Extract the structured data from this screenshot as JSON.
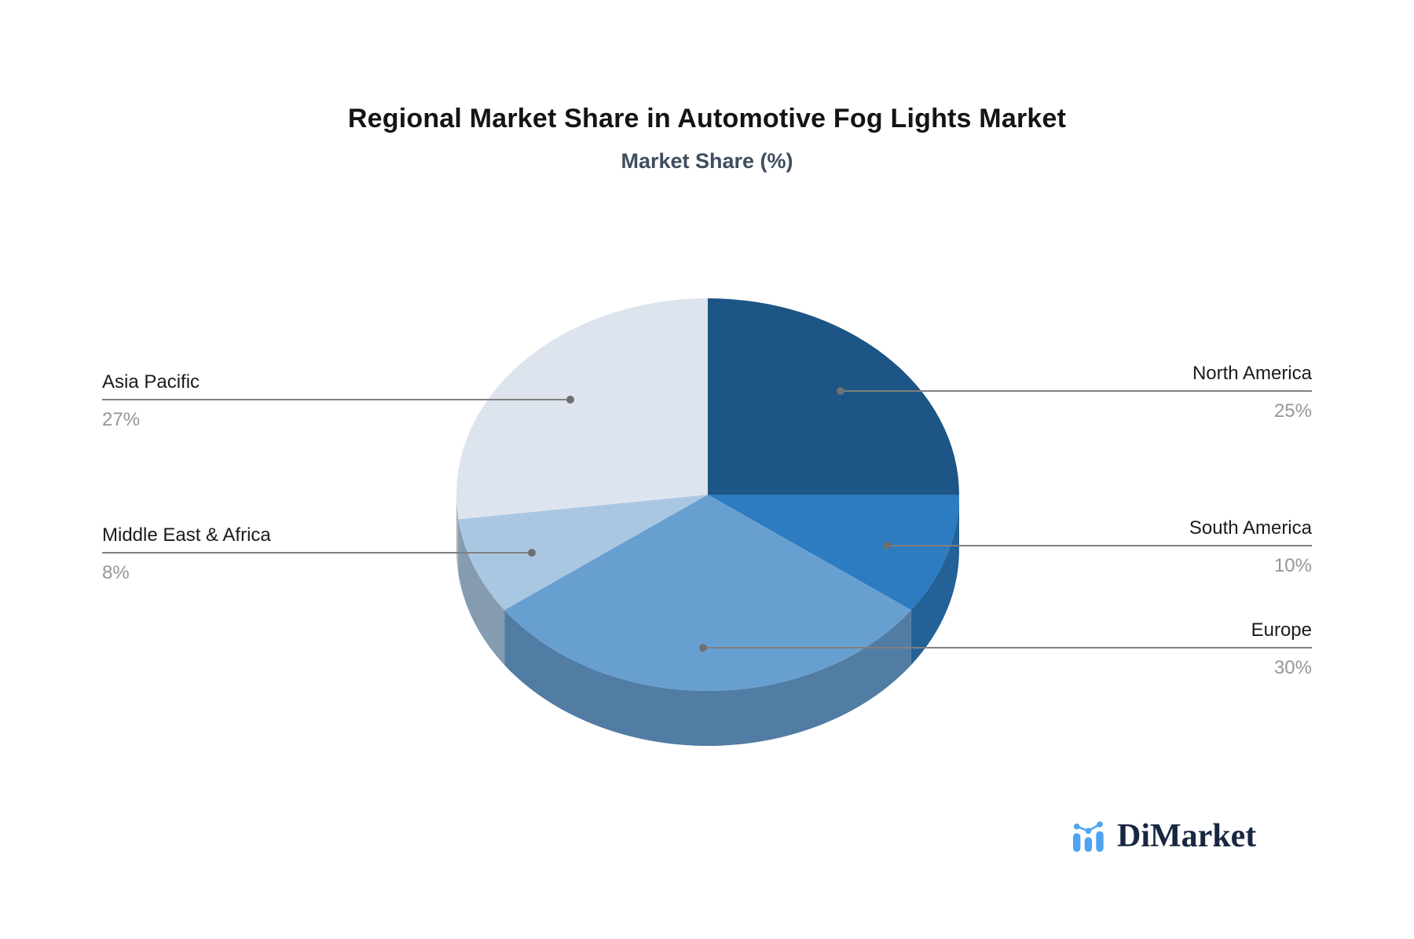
{
  "title": "Regional Market Share in Automotive Fog Lights Market",
  "subtitle": "Market Share (%)",
  "chart_data": {
    "type": "pie",
    "title": "Regional Market Share in Automotive Fog Lights Market",
    "subtitle": "Market Share (%)",
    "unit": "%",
    "start_angle_deg": 0,
    "direction": "clockwise",
    "effect_3d": true,
    "legend_position": "callout-labels",
    "segments": [
      {
        "label": "North America",
        "value": 25,
        "value_label": "25%",
        "color": "#1c5586"
      },
      {
        "label": "South America",
        "value": 10,
        "value_label": "10%",
        "color": "#2d7cc1"
      },
      {
        "label": "Europe",
        "value": 30,
        "value_label": "30%",
        "color": "#689fd1"
      },
      {
        "label": "Middle East & Africa",
        "value": 8,
        "value_label": "8%",
        "color": "#aac7e2"
      },
      {
        "label": "Asia Pacific",
        "value": 27,
        "value_label": "27%",
        "color": "#dee4ee"
      }
    ],
    "callout_line_color": "#808080",
    "callout_dot_color": "#6f6f6f"
  },
  "branding": {
    "logo_text": "DiMarket",
    "logo_icon": "bar-chart-trend-icon",
    "logo_text_color": "#182741",
    "logo_icon_color": "#4fa3f1"
  }
}
